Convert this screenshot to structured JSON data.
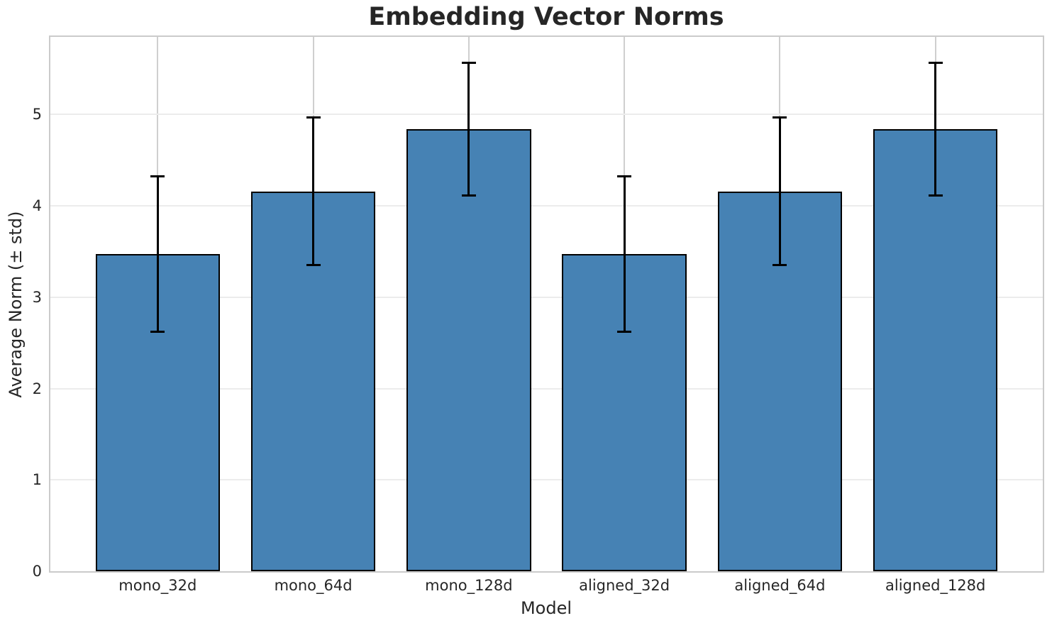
{
  "chart_data": {
    "type": "bar",
    "title": "Embedding Vector Norms",
    "xlabel": "Model",
    "ylabel": "Average Norm (± std)",
    "categories": [
      "mono_32d",
      "mono_64d",
      "mono_128d",
      "aligned_32d",
      "aligned_64d",
      "aligned_128d"
    ],
    "values": [
      3.47,
      4.16,
      4.84,
      3.47,
      4.16,
      4.84
    ],
    "errors": [
      0.85,
      0.81,
      0.73,
      0.85,
      0.81,
      0.73
    ],
    "yticks": [
      0,
      1,
      2,
      3,
      4,
      5
    ],
    "ylim": [
      0,
      5.85
    ],
    "xlim": [
      -0.69,
      5.69
    ],
    "bar_width": 0.8,
    "grid": true,
    "legend": "none",
    "error_capsize_px": 20,
    "colors": {
      "bar_fill": "#4682B4",
      "bar_edge": "#000000",
      "error_bar": "#000000",
      "grid_horizontal": "#ececec",
      "grid_vertical": "#cfcfcf",
      "spine": "#cbcbcb",
      "text": "#262626"
    }
  }
}
